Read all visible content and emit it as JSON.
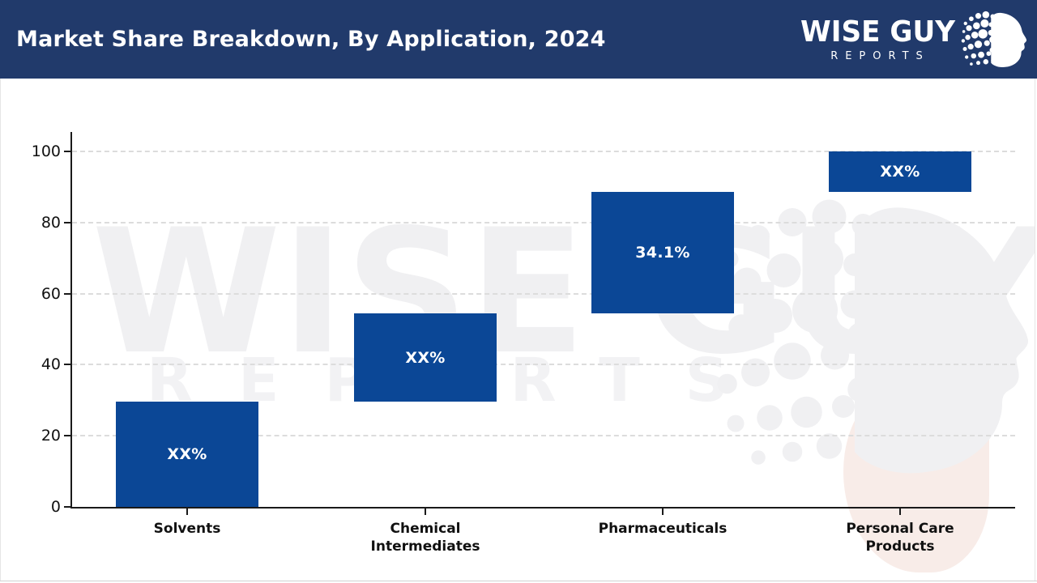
{
  "header": {
    "title": "Market Share Breakdown, By Application, 2024"
  },
  "brand": {
    "line1": "WISE GUY",
    "line2": "REPORTS"
  },
  "chart_data": {
    "type": "bar",
    "variant": "floating-waterfall",
    "title": "Market Share Breakdown, By Application, 2024",
    "categories": [
      "Solvents",
      "Chemical Intermediates",
      "Pharmaceuticals",
      "Personal Care Products"
    ],
    "bars": [
      {
        "category": "Solvents",
        "start": 0,
        "end": 29.5,
        "label": "XX%"
      },
      {
        "category": "Chemical Intermediates",
        "start": 29.5,
        "end": 54.4,
        "label": "XX%"
      },
      {
        "category": "Pharmaceuticals",
        "start": 54.4,
        "end": 88.5,
        "label": "34.1%",
        "value": 34.1
      },
      {
        "category": "Personal Care Products",
        "start": 88.5,
        "end": 100,
        "label": "XX%"
      }
    ],
    "xlabel": "",
    "ylabel": "",
    "ylim": [
      0,
      100
    ],
    "yticks": [
      0,
      20,
      40,
      60,
      80,
      100
    ],
    "grid": "horizontal-dashed",
    "legend": "none",
    "bar_color": "#0b4796",
    "bar_label_color": "#ffffff"
  },
  "colors": {
    "header_bg": "#213a6b",
    "axis": "#1a1a1a",
    "gridline": "#dcdcdc",
    "watermark": "#f0f0f2"
  }
}
